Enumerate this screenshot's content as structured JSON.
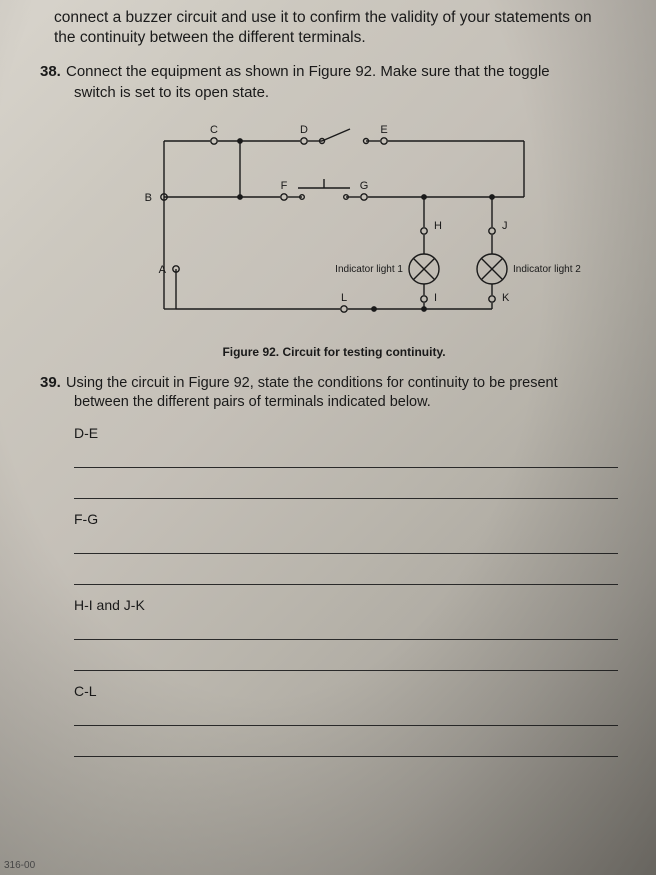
{
  "intro_line1": "connect a buzzer circuit and use it to confirm the validity of your statements on",
  "intro_line2": "the continuity between the different terminals.",
  "q38": {
    "num": "38.",
    "line1": "Connect the equipment as shown in Figure 92. Make sure that the toggle",
    "line2": "switch is set to its open state."
  },
  "figure": {
    "caption": "Figure 92. Circuit for testing continuity.",
    "labels": {
      "A": "A",
      "B": "B",
      "C": "C",
      "D": "D",
      "E": "E",
      "F": "F",
      "G": "G",
      "H": "H",
      "I": "I",
      "J": "J",
      "K": "K",
      "L": "L"
    },
    "ind1": "Indicator light 1",
    "ind2": "Indicator light 2",
    "stroke": "#1a1a1a",
    "font_label": 11,
    "font_ind": 10
  },
  "q39": {
    "num": "39.",
    "line1": "Using the circuit in Figure 92, state the conditions for continuity to be present",
    "line2": "between the different pairs of terminals indicated below.",
    "subs": [
      "D-E",
      "F-G",
      "H-I and J-K",
      "C-L"
    ]
  },
  "page_code": "316-00"
}
